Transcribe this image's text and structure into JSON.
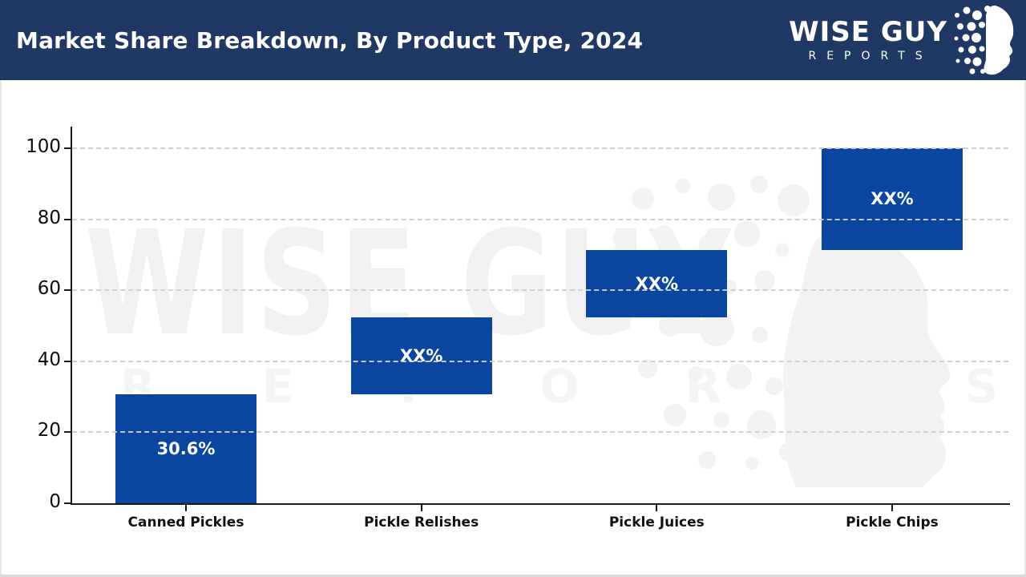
{
  "header": {
    "title": "Market Share Breakdown, By Product Type, 2024",
    "logo_primary": "WISE GUY",
    "logo_secondary": "REPORTS"
  },
  "watermark": {
    "primary": "WISE GUY",
    "secondary": "R E P O R T S"
  },
  "chart_data": {
    "type": "bar",
    "subtype": "waterfall-floating-bars",
    "title": "Market Share Breakdown, By Product Type, 2024",
    "categories": [
      "Canned Pickles",
      "Pickle Relishes",
      "Pickle Juices",
      "Pickle Chips"
    ],
    "segments": [
      {
        "category": "Canned Pickles",
        "start": 0,
        "end": 30.6,
        "label": "30.6%"
      },
      {
        "category": "Pickle Relishes",
        "start": 30.6,
        "end": 52.3,
        "label": "XX%"
      },
      {
        "category": "Pickle Juices",
        "start": 52.3,
        "end": 71.4,
        "label": "XX%"
      },
      {
        "category": "Pickle Chips",
        "start": 71.4,
        "end": 100,
        "label": "XX%"
      }
    ],
    "yticks": [
      0,
      20,
      40,
      60,
      80,
      100
    ],
    "ylim": [
      0,
      105
    ],
    "xlabel": "",
    "ylabel": "",
    "grid": "horizontal-dashed",
    "legend": "none",
    "bar_color": "#0a46a0",
    "bar_label_color": "#ffffff"
  },
  "colors": {
    "header_bg": "#1f3864",
    "bar_blue": "#0a46a0",
    "axis": "#1a1a1a",
    "gridline": "#d0d0d0",
    "watermark_gray": "#f1f1f1",
    "background": "#ffffff"
  }
}
